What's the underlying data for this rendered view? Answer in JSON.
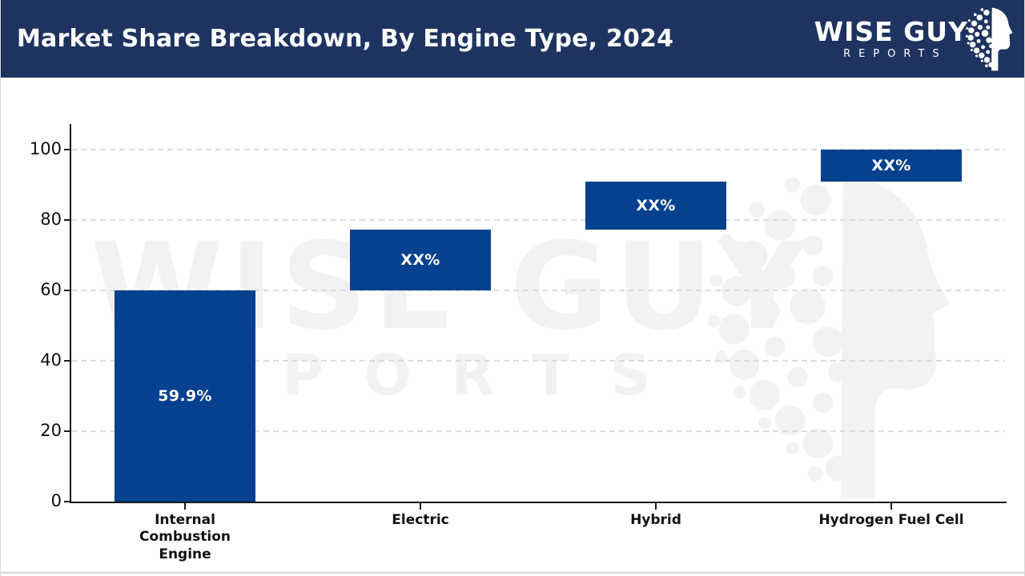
{
  "header": {
    "title": "Market Share Breakdown, By Engine Type, 2024",
    "brand": {
      "line1": "WISE GUY",
      "line2": "REPORTS"
    }
  },
  "watermark": {
    "line1": "WISE GUY",
    "line2": "REPORTS"
  },
  "chart_data": {
    "type": "bar",
    "subtype": "waterfall",
    "title": "Market Share Breakdown, By Engine Type, 2024",
    "xlabel": "",
    "ylabel": "",
    "ylim": [
      0,
      100
    ],
    "yticks": [
      0,
      20,
      40,
      60,
      80,
      100
    ],
    "grid": "horizontal-dashed",
    "legend": "none",
    "categories": [
      "Internal Combustion Engine",
      "Electric",
      "Hybrid",
      "Hydrogen Fuel Cell"
    ],
    "segments": [
      {
        "category": "Internal Combustion Engine",
        "base": 0,
        "top": 59.9,
        "label": "59.9%"
      },
      {
        "category": "Electric",
        "base": 60.0,
        "top": 77.3,
        "label": "XX%"
      },
      {
        "category": "Hybrid",
        "base": 77.3,
        "top": 90.9,
        "label": "XX%"
      },
      {
        "category": "Hydrogen Fuel Cell",
        "base": 90.9,
        "top": 100,
        "label": "XX%"
      }
    ],
    "colors": {
      "bar": "#05418f",
      "bar_label": "#ffffff",
      "header_bg": "#1f3360",
      "grid": "#dcdcdc",
      "axis": "#1a1a1a",
      "watermark": "#f2f2f2"
    }
  }
}
